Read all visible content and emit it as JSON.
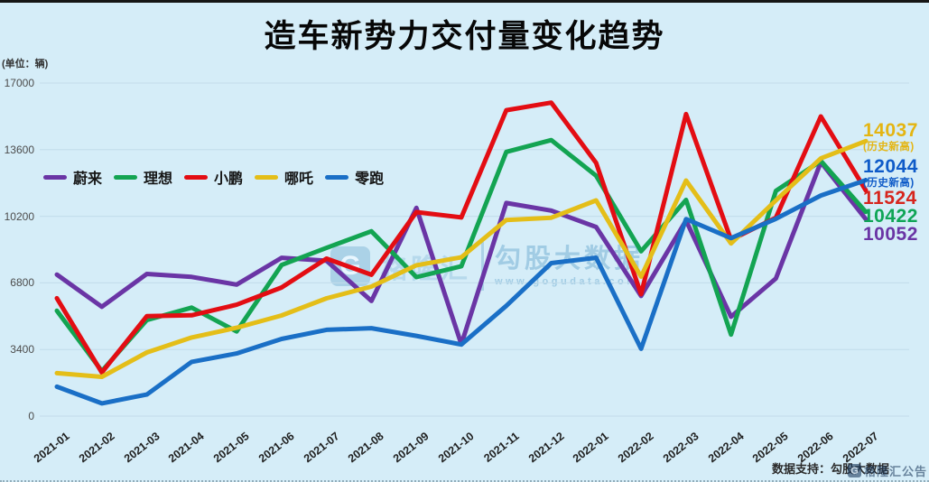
{
  "title": "造车新势力交付量变化趋势",
  "unit_label": "(单位：辆)",
  "background_color": "#D5EDF8",
  "gridline_color": "#C2DCEA",
  "chart_data": {
    "type": "line",
    "x": [
      "2021-01",
      "2021-02",
      "2021-03",
      "2021-04",
      "2021-05",
      "2021-06",
      "2021-07",
      "2021-08",
      "2021-09",
      "2021-10",
      "2021-11",
      "2021-12",
      "2022-01",
      "2022-02",
      "2022-03",
      "2022-04",
      "2022-05",
      "2022-06",
      "2022-07"
    ],
    "series": [
      {
        "name": "蔚来",
        "color": "#6A35A5",
        "values": [
          7225,
          5578,
          7257,
          7102,
          6711,
          8083,
          7931,
          5880,
          10628,
          3667,
          10878,
          10489,
          9652,
          6131,
          9985,
          5074,
          7024,
          12961,
          10052
        ]
      },
      {
        "name": "理想",
        "color": "#13A452",
        "values": [
          5379,
          2300,
          4900,
          5539,
          4323,
          7713,
          8589,
          9433,
          7094,
          7649,
          13485,
          14087,
          12268,
          8414,
          11034,
          4167,
          11496,
          13024,
          10422
        ]
      },
      {
        "name": "小鹏",
        "color": "#E30D13",
        "values": [
          6015,
          2223,
          5102,
          5147,
          5686,
          6565,
          8040,
          7214,
          10412,
          10138,
          15613,
          16000,
          12922,
          6225,
          15414,
          9002,
          10125,
          15295,
          11524
        ]
      },
      {
        "name": "哪吒",
        "color": "#E4BE18",
        "values": [
          2195,
          2002,
          3246,
          4015,
          4508,
          5138,
          6011,
          6613,
          7699,
          8107,
          10013,
          10127,
          11009,
          7117,
          12026,
          8813,
          11009,
          13157,
          14037
        ]
      },
      {
        "name": "零跑",
        "color": "#1A6FC6",
        "values": [
          1500,
          650,
          1100,
          2770,
          3195,
          3941,
          4404,
          4488,
          4095,
          3654,
          5628,
          7807,
          8085,
          3435,
          10059,
          9087,
          10069,
          11259,
          12044
        ]
      }
    ],
    "ylim": [
      0,
      17000
    ],
    "yticks": [
      0,
      3400,
      6800,
      10200,
      13600,
      17000
    ],
    "grid": true,
    "legend_position": "upper-left inside plot"
  },
  "annotations": [
    {
      "value": "14037",
      "note": "(历史新高)",
      "series": "哪吒",
      "color": "#E4B512"
    },
    {
      "value": "12044",
      "note": "(历史新高)",
      "series": "零跑",
      "color": "#0F5BC8"
    },
    {
      "value": "11524",
      "note": "",
      "series": "小鹏",
      "color": "#D6251D"
    },
    {
      "value": "10422",
      "note": "",
      "series": "理想",
      "color": "#0FA556"
    },
    {
      "value": "10052",
      "note": "",
      "series": "蔚来",
      "color": "#6A35A5"
    }
  ],
  "watermark": {
    "logo_letter": "G",
    "partner": "格隆汇",
    "brand": "勾股大数据",
    "url": "www.gogudata.com"
  },
  "footer": {
    "credit": "数据支持：勾股大数据",
    "stamp": "格隆汇公告"
  }
}
